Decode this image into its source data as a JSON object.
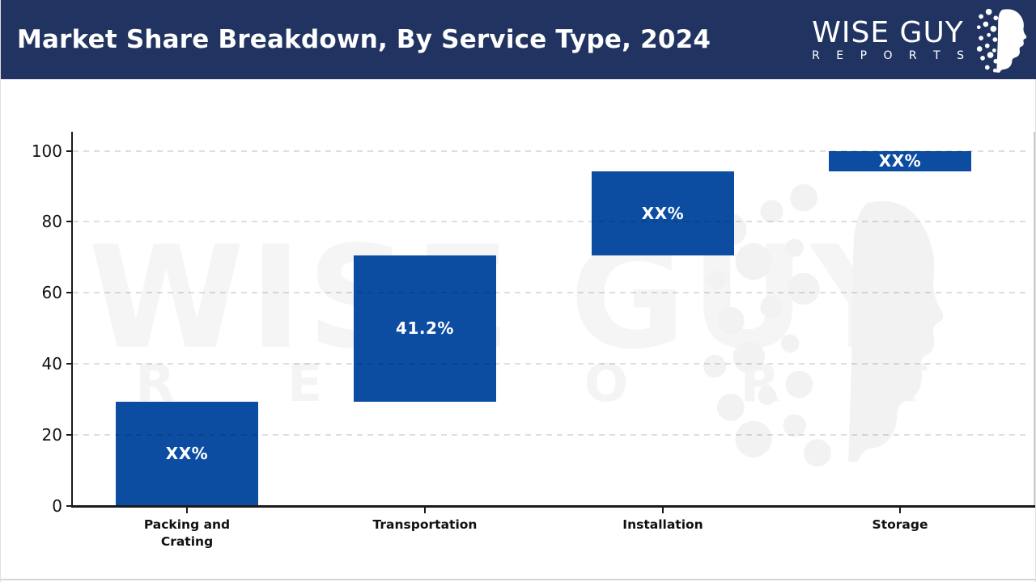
{
  "header": {
    "title": "Market Share Breakdown, By Service Type, 2024",
    "bg_color": "#213461",
    "logo": {
      "line1": "WISE GUY",
      "line2": "R E P O R T S"
    }
  },
  "watermark": {
    "line1": "WISE GUY",
    "line2": "R E P O R T S"
  },
  "chart_data": {
    "type": "bar",
    "subtype": "floating-waterfall",
    "title": "Market Share Breakdown, By Service Type, 2024",
    "categories": [
      "Packing and\nCrating",
      "Transportation",
      "Installation",
      "Storage"
    ],
    "segments": [
      {
        "category": "Packing and Crating",
        "start": 0,
        "end": 29.4,
        "value": 29.4,
        "label": "XX%"
      },
      {
        "category": "Transportation",
        "start": 29.4,
        "end": 70.6,
        "value": 41.2,
        "label": "41.2%"
      },
      {
        "category": "Installation",
        "start": 70.6,
        "end": 94.1,
        "value": 23.5,
        "label": "XX%"
      },
      {
        "category": "Storage",
        "start": 94.1,
        "end": 100.0,
        "value": 5.9,
        "label": "XX%"
      }
    ],
    "yticks": [
      0,
      20,
      40,
      60,
      80,
      100
    ],
    "ylim": [
      0,
      105
    ],
    "xlabel": "",
    "ylabel": "",
    "grid": "horizontal-dashed",
    "legend": "none",
    "bar_color": "#0C4DA2",
    "bar_label_color": "#ffffff"
  }
}
